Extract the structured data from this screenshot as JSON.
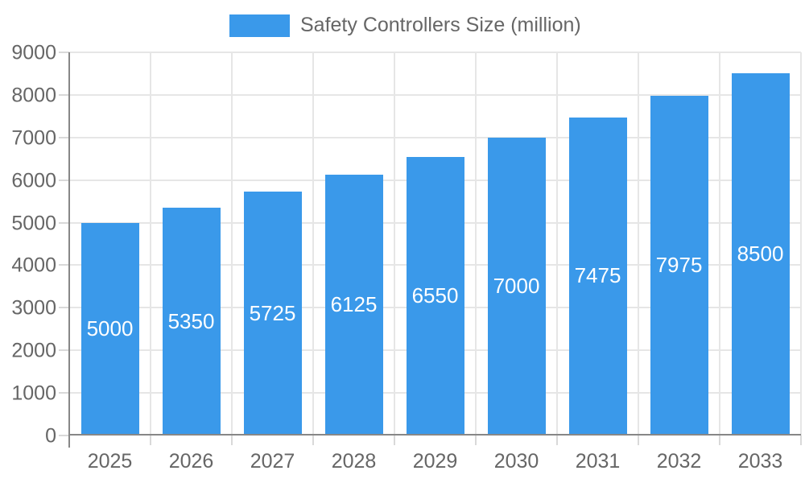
{
  "chart_data": {
    "type": "bar",
    "title": "Safety Controllers Size (million)",
    "legend_position": "top",
    "categories": [
      "2025",
      "2026",
      "2027",
      "2028",
      "2029",
      "2030",
      "2031",
      "2032",
      "2033"
    ],
    "series": [
      {
        "name": "Safety Controllers Size (million)",
        "color": "#3A99EA",
        "values": [
          5000,
          5350,
          5725,
          6125,
          6550,
          7000,
          7475,
          7975,
          8500
        ]
      }
    ],
    "value_labels": [
      "5000",
      "5350",
      "5725",
      "6125",
      "6550",
      "7000",
      "7475",
      "7975",
      "8500"
    ],
    "value_label_position": "inside-center",
    "xlabel": "",
    "ylabel": "",
    "ylim": [
      0,
      9000
    ],
    "y_ticks": [
      0,
      1000,
      2000,
      3000,
      4000,
      5000,
      6000,
      7000,
      8000,
      9000
    ],
    "grid": true
  },
  "colors": {
    "bar": "#3A99EA",
    "grid_line": "#E6E6E6",
    "axis_line": "#878787",
    "tick_line": "#D9D9D9",
    "tick_text": "#666666",
    "legend_text": "#666666",
    "value_label_text": "#FFFFFF",
    "background": "#FFFFFF"
  }
}
